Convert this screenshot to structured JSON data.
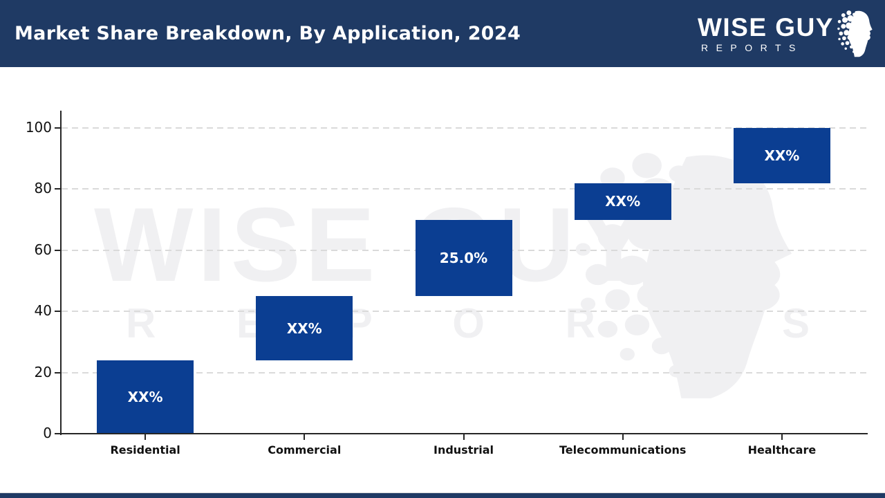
{
  "header": {
    "title": "Market Share Breakdown, By Application, 2024",
    "logo": {
      "line1": "WISE GUY",
      "line2": "REPORTS"
    }
  },
  "watermark": {
    "line1": "WISE GUY",
    "line2": "R E P O R T S"
  },
  "colors": {
    "header_background": "#1f3a64",
    "bar": "#0b3e92",
    "bar_label": "#ffffff",
    "gridline": "#dadada",
    "axis": "#262626",
    "watermark": "#f0f0f2"
  },
  "chart_data": {
    "type": "bar",
    "variant": "waterfall",
    "title": "Market Share Breakdown, By Application, 2024",
    "xlabel": "",
    "ylabel": "",
    "categories": [
      "Residential",
      "Commercial",
      "Industrial",
      "Telecommunications",
      "Healthcare"
    ],
    "segments": [
      {
        "category": "Residential",
        "start": 0,
        "end": 24,
        "label": "XX%"
      },
      {
        "category": "Commercial",
        "start": 24,
        "end": 45,
        "label": "XX%"
      },
      {
        "category": "Industrial",
        "start": 45,
        "end": 70,
        "label": "25.0%"
      },
      {
        "category": "Telecommunications",
        "start": 70,
        "end": 82,
        "label": "XX%"
      },
      {
        "category": "Healthcare",
        "start": 82,
        "end": 100,
        "label": "XX%"
      }
    ],
    "yticks": [
      0,
      20,
      40,
      60,
      80,
      100
    ],
    "ylim": [
      0,
      105.5
    ],
    "grid": {
      "axis": "y",
      "style": "dashed"
    },
    "legend": "none"
  }
}
